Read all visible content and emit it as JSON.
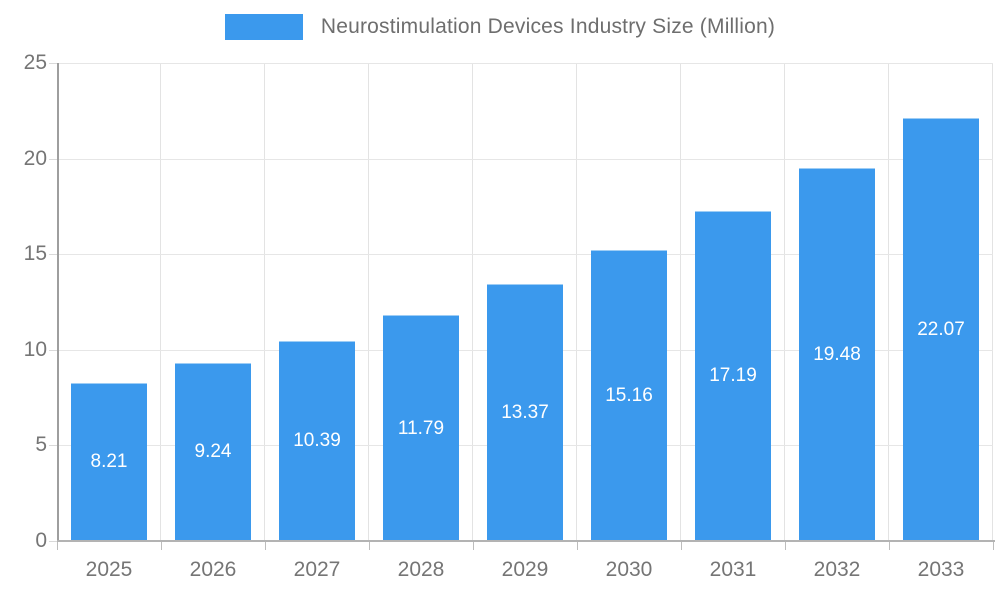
{
  "chart_data": {
    "type": "bar",
    "title": "Neurostimulation Devices Industry Size (Million)",
    "legend": {
      "label": "Neurostimulation Devices Industry Size (Million)",
      "position": "top-center"
    },
    "categories": [
      "2025",
      "2026",
      "2027",
      "2028",
      "2029",
      "2030",
      "2031",
      "2032",
      "2033"
    ],
    "series": [
      {
        "name": "Neurostimulation Devices Industry Size (Million)",
        "values": [
          8.21,
          9.24,
          10.39,
          11.79,
          13.37,
          15.16,
          17.19,
          19.48,
          22.07
        ]
      }
    ],
    "value_labels": [
      "8.21",
      "9.24",
      "10.39",
      "11.79",
      "13.37",
      "15.16",
      "17.19",
      "19.48",
      "22.07"
    ],
    "xlabel": "",
    "ylabel": "",
    "ylim": [
      0,
      25
    ],
    "yticks": [
      0,
      5,
      10,
      15,
      20,
      25
    ],
    "grid": true,
    "colors": {
      "bar": "#3b99ed",
      "value_label": "#ffffff",
      "axis_text": "#757575",
      "legend_text": "#6e6e6e",
      "gridline": "#e6e6e6",
      "axis_line": "#9e9e9e"
    }
  }
}
